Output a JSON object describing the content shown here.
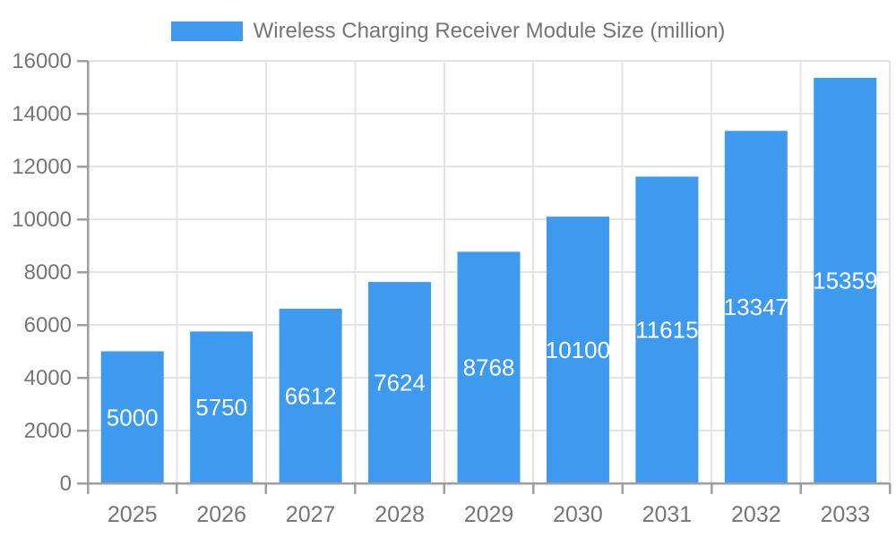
{
  "chart_data": {
    "type": "bar",
    "title": "Wireless Charging Receiver Module Size (million)",
    "categories": [
      "2025",
      "2026",
      "2027",
      "2028",
      "2029",
      "2030",
      "2031",
      "2032",
      "2033"
    ],
    "values": [
      5000,
      5750,
      6612,
      7624,
      8768,
      10100,
      11615,
      13347,
      15359
    ],
    "y_ticks": [
      0,
      2000,
      4000,
      6000,
      8000,
      10000,
      12000,
      14000,
      16000
    ],
    "ylim": [
      0,
      16000
    ],
    "xlabel": "",
    "ylabel": "",
    "grid": true,
    "legend_position": "top",
    "bar_labels_inside": true
  },
  "colors": {
    "bar": "#3d9aef",
    "axis": "#9e9e9e",
    "grid": "#e3e3e3",
    "tick_label": "#757575",
    "title_text": "#757575",
    "bar_label": "#ffffff",
    "background": "#ffffff"
  }
}
